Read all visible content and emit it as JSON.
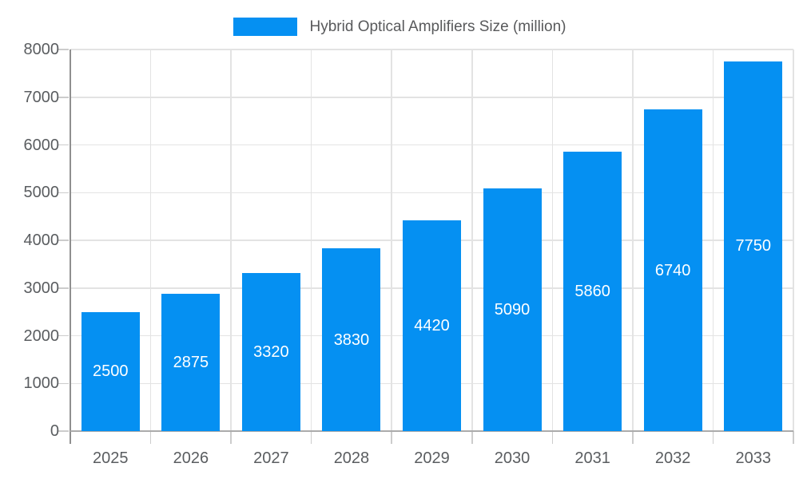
{
  "legend": {
    "label": "Hybrid Optical Amplifiers Size (million)"
  },
  "chart_data": {
    "type": "bar",
    "title": "Hybrid Optical Amplifiers Size (million)",
    "series_name": "Hybrid Optical Amplifiers Size (million)",
    "categories": [
      "2025",
      "2026",
      "2027",
      "2028",
      "2029",
      "2030",
      "2031",
      "2032",
      "2033"
    ],
    "values": [
      2500,
      2875,
      3320,
      3830,
      4420,
      5090,
      5860,
      6740,
      7750
    ],
    "value_labels": [
      "2500",
      "2875",
      "3320",
      "3830",
      "4420",
      "5090",
      "5860",
      "6740",
      "7750"
    ],
    "xlabel": "",
    "ylabel": "",
    "ylim": [
      0,
      8000
    ],
    "yticks": [
      0,
      1000,
      2000,
      3000,
      4000,
      5000,
      6000,
      7000,
      8000
    ],
    "ytick_labels": [
      "0",
      "1000",
      "2000",
      "3000",
      "4000",
      "5000",
      "6000",
      "7000",
      "8000"
    ],
    "grid": true,
    "legend_position": "top",
    "value_labels_inside_bars": true,
    "colors": {
      "bar": "#0590F2",
      "value_label": "#FFFFFF",
      "axis_text": "#5A5D60",
      "title_text": "#58595B",
      "gridline": "#E3E3E3",
      "axis_line": "#8F8F8F",
      "baseline": "#ABABAB",
      "tick": "#CCCCCC"
    }
  }
}
